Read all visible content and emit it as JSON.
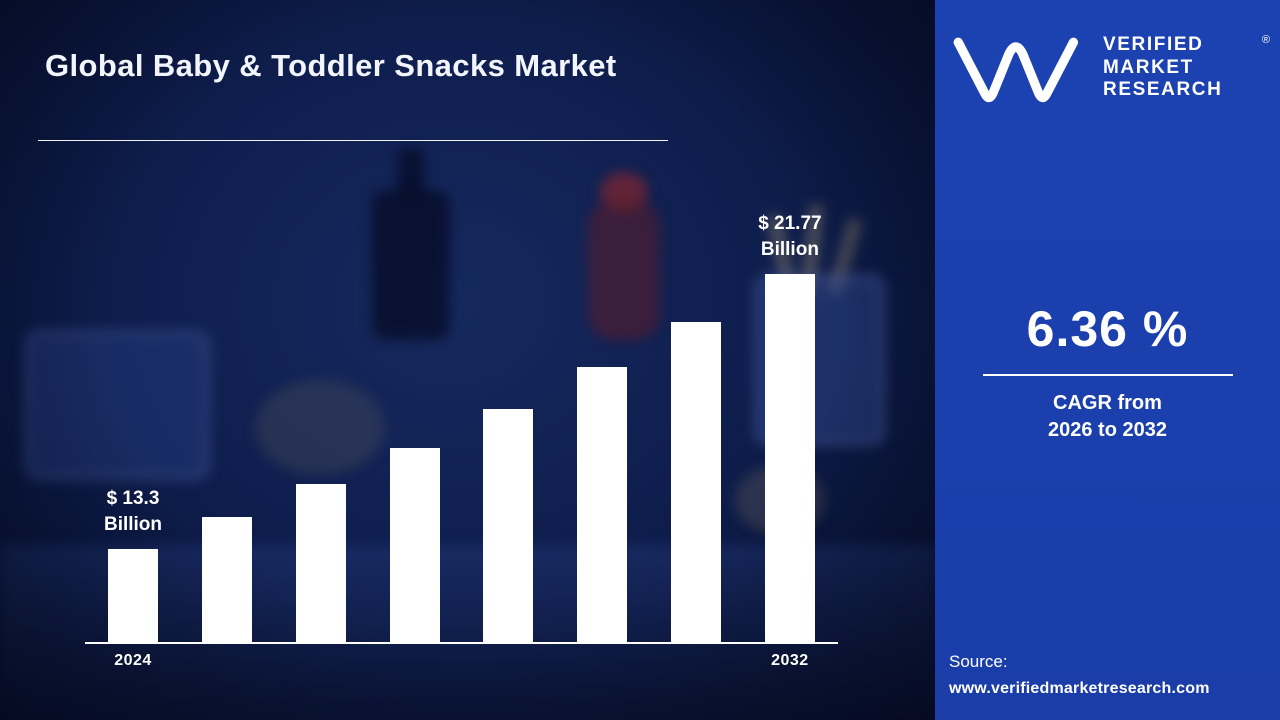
{
  "page": {
    "title": "Global Baby & Toddler Snacks Market"
  },
  "brand": {
    "name_lines": [
      "VERIFIED",
      "MARKET",
      "RESEARCH"
    ],
    "registered_mark": "®"
  },
  "kpi": {
    "value": "6.36 %",
    "caption_lines": [
      "CAGR from",
      "2026 to 2032"
    ]
  },
  "source": {
    "label": "Source:",
    "url": "www.verifiedmarketresearch.com"
  },
  "chart_data": {
    "type": "bar",
    "title": "Global Baby & Toddler Snacks Market",
    "categories": [
      "2024",
      "",
      "",
      "",
      "",
      "",
      "",
      "2032"
    ],
    "values": [
      13.3,
      14.3,
      15.3,
      16.4,
      17.6,
      18.9,
      20.3,
      21.77
    ],
    "unit": "USD Billion",
    "xlabel": "",
    "ylabel": "",
    "ylim": [
      13.3,
      21.77
    ],
    "grid": false,
    "legend": false,
    "bar_color": "#ffffff",
    "annotations": [
      {
        "index": 0,
        "lines": [
          "$ 13.3",
          "Billion"
        ]
      },
      {
        "index": 7,
        "lines": [
          "$ 21.77",
          "Billion"
        ]
      }
    ]
  },
  "colors": {
    "panel_blue": "#1b40ac",
    "background_navy": "#0e1d4c",
    "bar_white": "#ffffff",
    "text_white": "#ffffff"
  }
}
